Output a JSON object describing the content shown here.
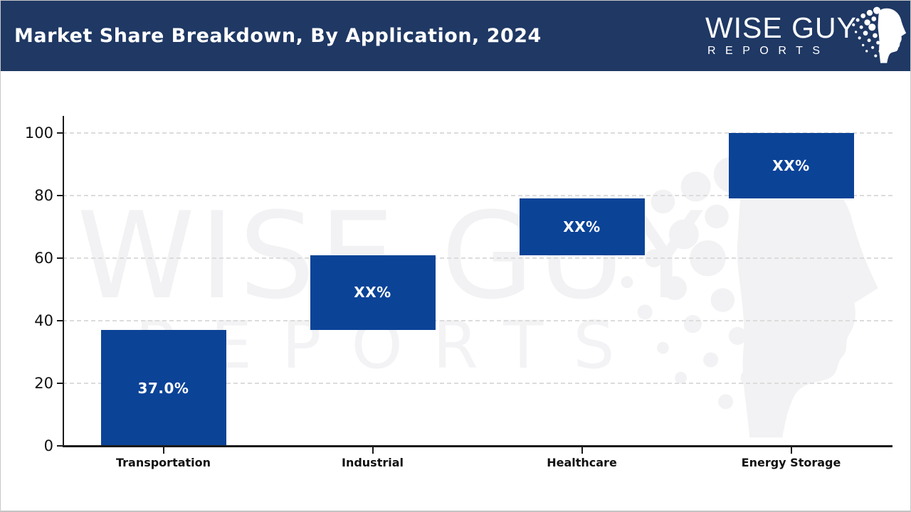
{
  "header": {
    "title": "Market Share Breakdown, By Application, 2024",
    "brand": {
      "wordmark": "WISE GUY",
      "sub_wordmark": "REPORTS"
    },
    "bg_color": "#1f3864"
  },
  "watermark": {
    "wordmark": "WISE GUY",
    "sub_wordmark": "REPORTS"
  },
  "chart_data": {
    "type": "bar",
    "subtype": "waterfall",
    "title": "Market Share Breakdown, By Application, 2024",
    "categories": [
      "Transportation",
      "Industrial",
      "Healthcare",
      "Energy Storage"
    ],
    "segments": [
      {
        "category": "Transportation",
        "start": 0,
        "end": 37,
        "value": 37,
        "label": "37.0%"
      },
      {
        "category": "Industrial",
        "start": 37,
        "end": 61,
        "value": 24,
        "label": "XX%"
      },
      {
        "category": "Healthcare",
        "start": 61,
        "end": 79,
        "value": 18,
        "label": "XX%"
      },
      {
        "category": "Energy Storage",
        "start": 79,
        "end": 100,
        "value": 21,
        "label": "XX%"
      }
    ],
    "xlabel": "",
    "ylabel": "",
    "ylim": [
      0,
      100
    ],
    "yticks": [
      0,
      20,
      40,
      60,
      80,
      100
    ],
    "grid": {
      "horizontal": true,
      "style": "dashed",
      "color": "#dcdcdc"
    },
    "legend": "none",
    "bar_color": "#0b4397",
    "bar_label_color": "#ffffff",
    "axis_color": "#1a1a1a",
    "tick_label_color": "#111111"
  }
}
